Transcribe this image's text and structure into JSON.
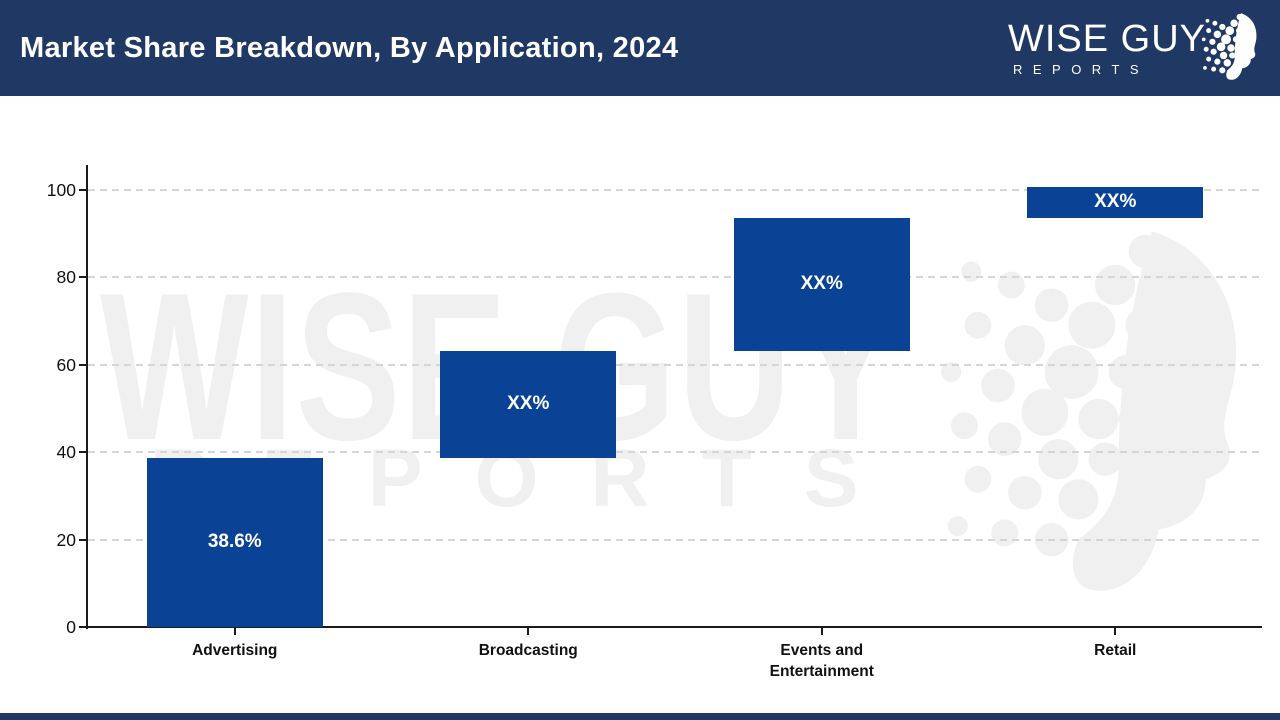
{
  "header": {
    "title": "Market Share Breakdown, By Application, 2024",
    "bg_color": "#203864",
    "logo": {
      "line1": "WISE GUY",
      "line2": "REPORTS"
    }
  },
  "watermark": {
    "line1": "WISE GUY",
    "line2": "REPORTS"
  },
  "chart_data": {
    "type": "bar",
    "subtype": "waterfall",
    "title": "Market Share Breakdown, By Application, 2024",
    "categories": [
      "Advertising",
      "Broadcasting",
      "Events and Entertainment",
      "Retail"
    ],
    "segments": [
      {
        "category": "Advertising",
        "start": 0,
        "end": 38.6,
        "label": "38.6%"
      },
      {
        "category": "Broadcasting",
        "start": 38.6,
        "end": 63.0,
        "label": "XX%"
      },
      {
        "category": "Events and Entertainment",
        "start": 63.0,
        "end": 93.5,
        "label": "XX%"
      },
      {
        "category": "Retail",
        "start": 93.5,
        "end": 100.5,
        "label": "XX%"
      }
    ],
    "yticks": [
      0,
      20,
      40,
      60,
      80,
      100
    ],
    "ylim": [
      0,
      105
    ],
    "grid": true,
    "legend": false,
    "bar_color": "#0a4396",
    "gridline_color": "#d6d6d6",
    "axis_color": "#1a1a1a",
    "value_label_color": "#ffffff"
  }
}
